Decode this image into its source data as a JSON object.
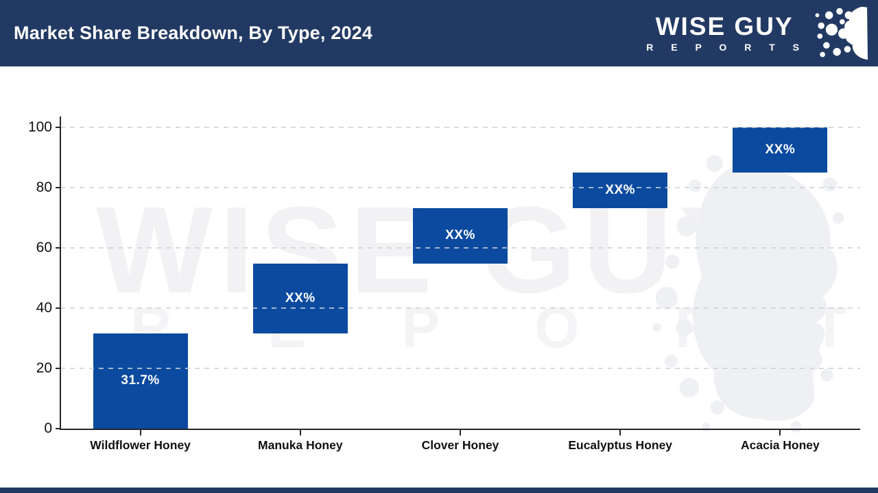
{
  "header": {
    "title": "Market Share Breakdown, By Type, 2024",
    "logo": {
      "name": "WISE GUY",
      "sub": "R E P O R T S"
    }
  },
  "watermark": {
    "line1": "WISE GUY",
    "line2": "R E P O R T S"
  },
  "footer": {},
  "colors": {
    "header_navy": "#223a63",
    "bar_blue": "#0b4a9f",
    "gridline_gray": "#d9d9d9",
    "axis_dark": "#262626",
    "watermark_gray": "#f2f2f4"
  },
  "chart_data": {
    "type": "bar",
    "subtype": "waterfall",
    "title": "Market Share Breakdown, By Type, 2024",
    "categories": [
      "Wildflower Honey",
      "Manuka Honey",
      "Clover Honey",
      "Eucalyptus Honey",
      "Acacia Honey"
    ],
    "bars": [
      {
        "category": "Wildflower Honey",
        "start": 0,
        "end": 31.7,
        "label": "31.7%"
      },
      {
        "category": "Manuka Honey",
        "start": 31.7,
        "end": 54.8,
        "label": "XX%"
      },
      {
        "category": "Clover Honey",
        "start": 54.8,
        "end": 73.2,
        "label": "XX%"
      },
      {
        "category": "Eucalyptus Honey",
        "start": 73.2,
        "end": 85.0,
        "label": "XX%"
      },
      {
        "category": "Acacia Honey",
        "start": 85.0,
        "end": 100.0,
        "label": "XX%"
      }
    ],
    "yticks": [
      0,
      20,
      40,
      60,
      80,
      100
    ],
    "ylim": [
      0,
      103.6
    ],
    "xlabel": "",
    "ylabel": "",
    "grid": "horizontal-dashed",
    "legend": "none",
    "bar_color": "#0b4a9f"
  }
}
